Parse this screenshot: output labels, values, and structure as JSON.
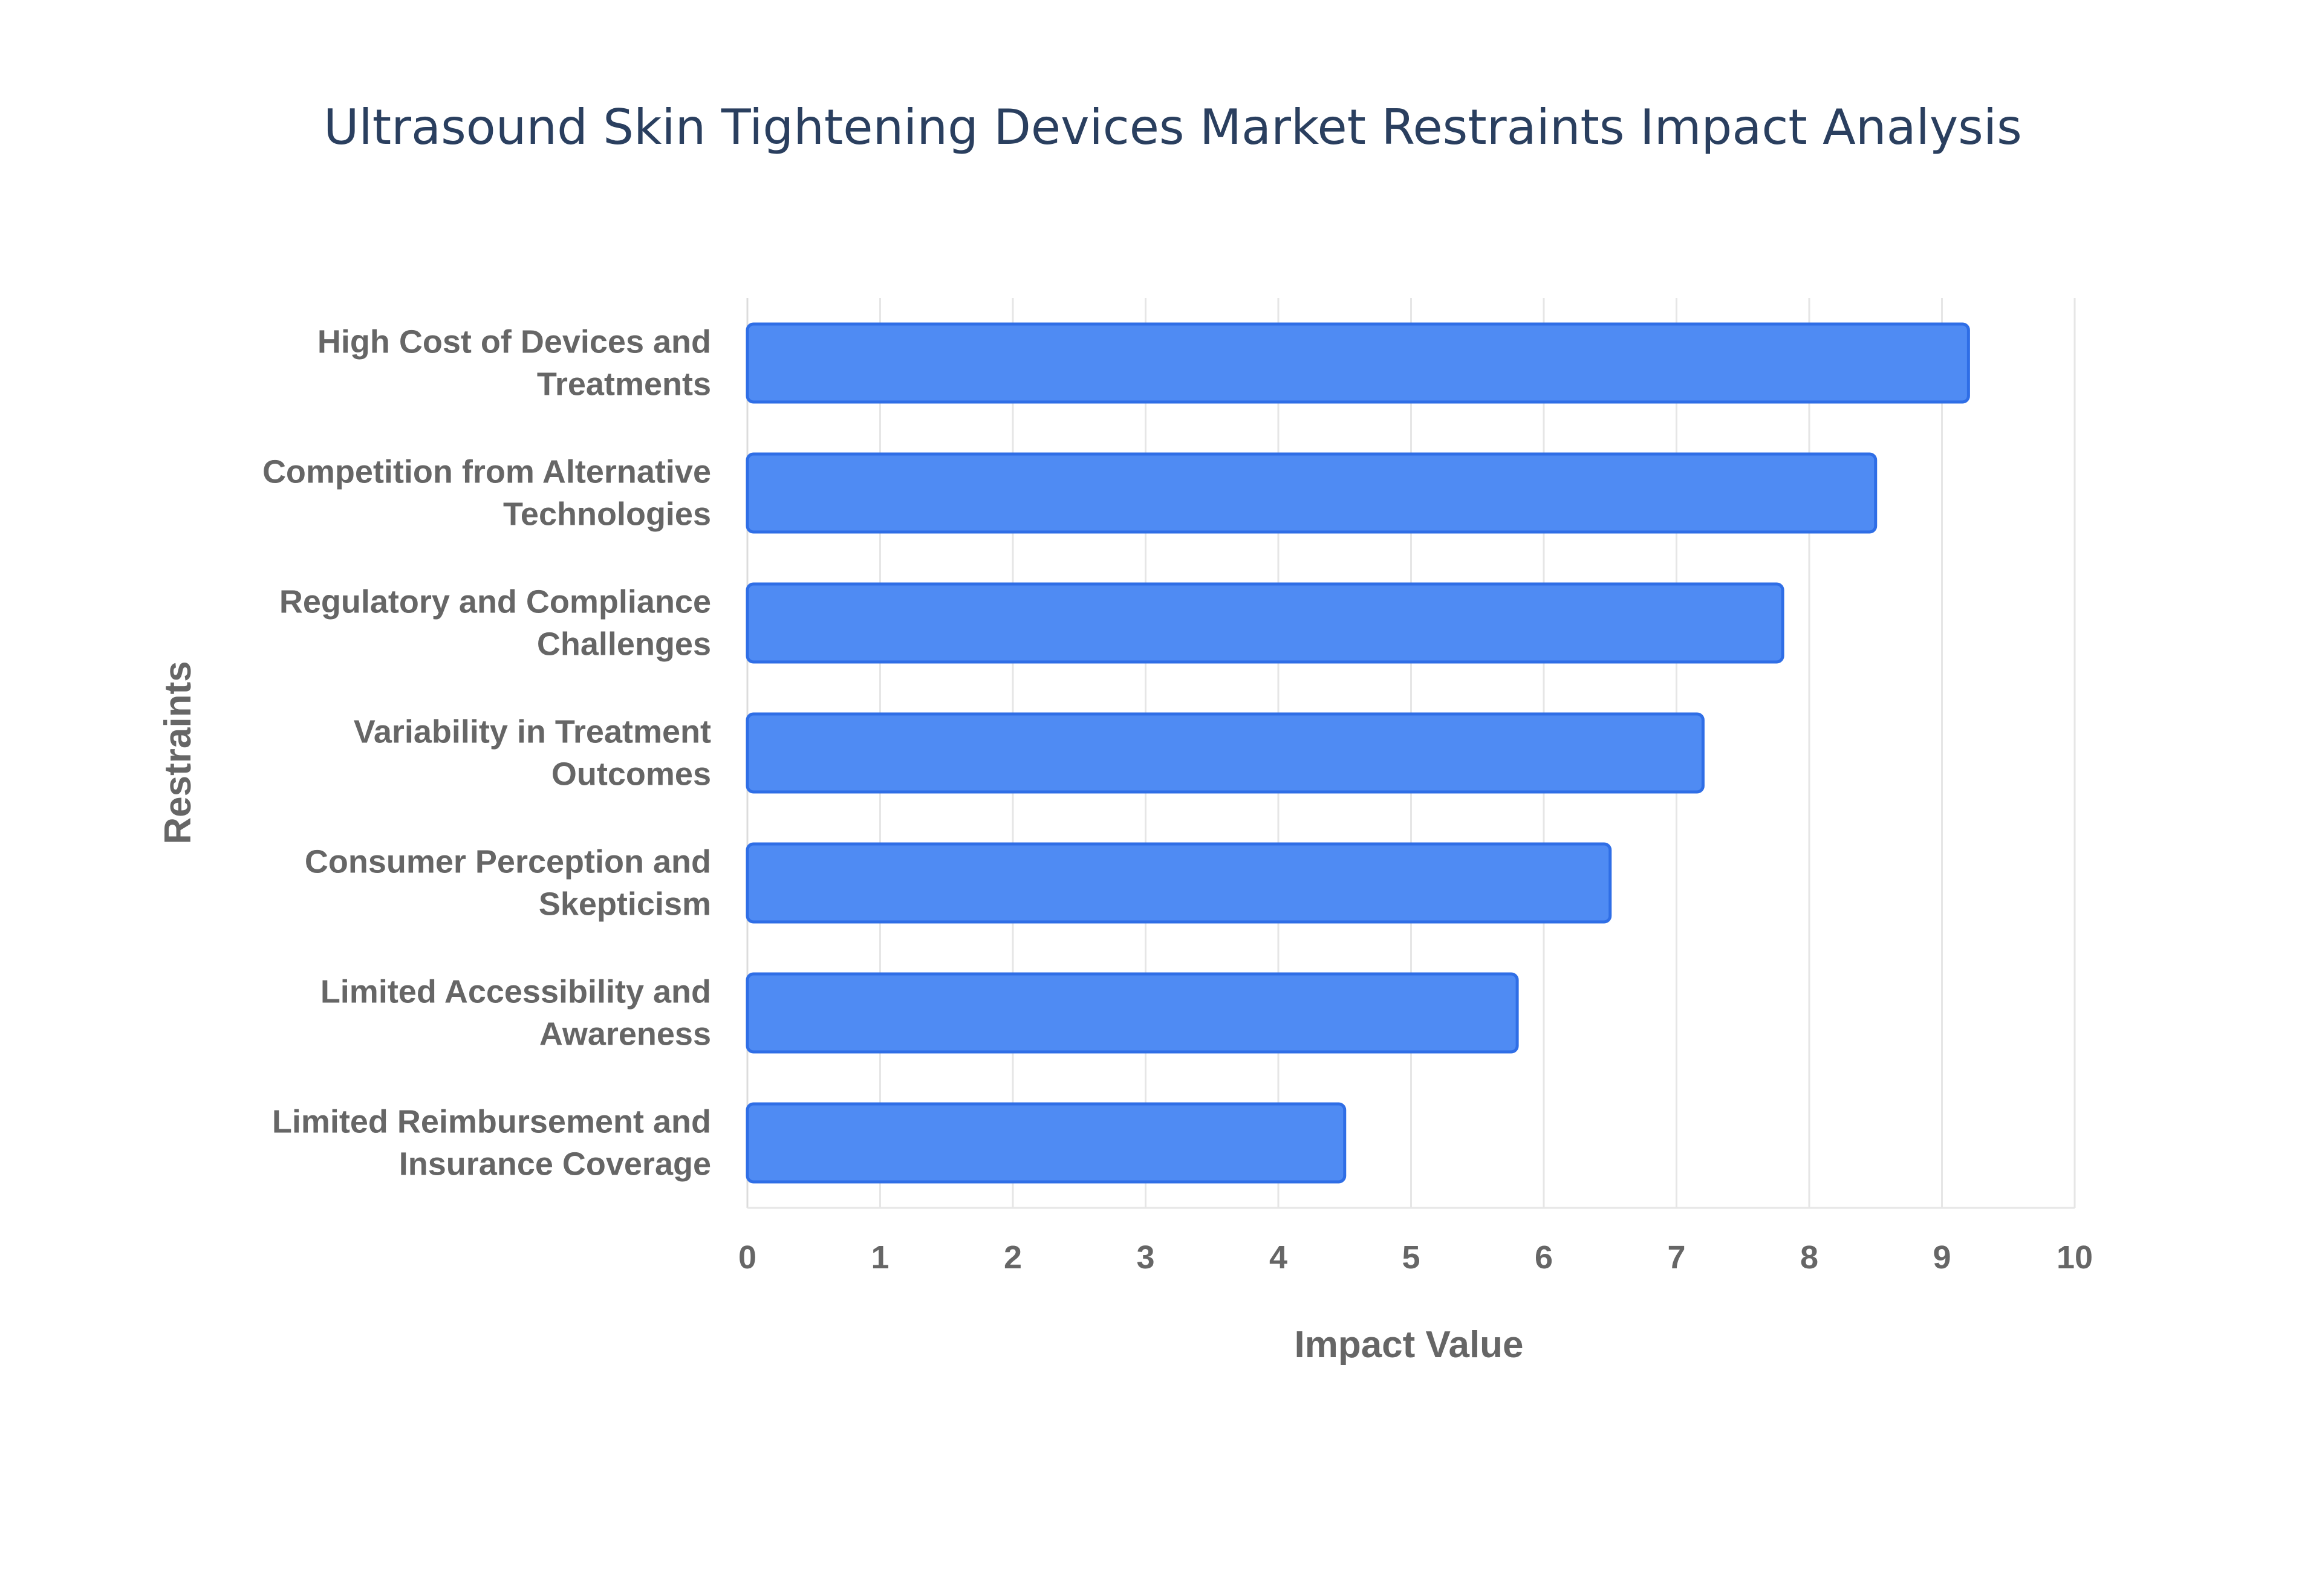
{
  "chart_data": {
    "type": "bar",
    "orientation": "horizontal",
    "title": "Ultrasound Skin Tightening Devices Market Restraints Impact Analysis",
    "xlabel": "Impact Value",
    "ylabel": "Restraints",
    "xlim": [
      0,
      10
    ],
    "xticks": [
      "0",
      "1",
      "2",
      "3",
      "4",
      "5",
      "6",
      "7",
      "8",
      "9",
      "10"
    ],
    "grid": true,
    "categories": [
      [
        "High Cost of Devices and",
        "Treatments"
      ],
      [
        "Competition from Alternative",
        "Technologies"
      ],
      [
        "Regulatory and Compliance",
        "Challenges"
      ],
      [
        "Variability in Treatment",
        "Outcomes"
      ],
      [
        "Consumer Perception and",
        "Skepticism"
      ],
      [
        "Limited Accessibility and",
        "Awareness"
      ],
      [
        "Limited Reimbursement and",
        "Insurance Coverage"
      ]
    ],
    "values": [
      9.2,
      8.5,
      7.8,
      7.2,
      6.5,
      5.8,
      4.5
    ],
    "colors": {
      "bar_fill": "#4f8bf3",
      "bar_stroke": "#2f6ee6"
    }
  }
}
